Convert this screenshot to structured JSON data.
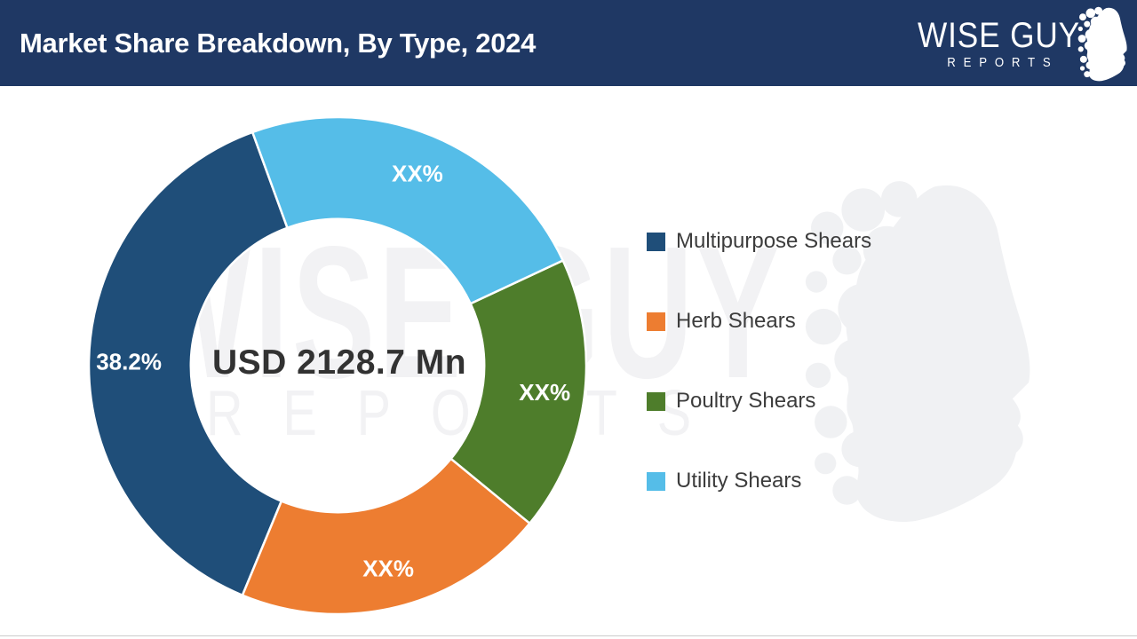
{
  "header": {
    "title": "Market Share Breakdown, By Type, 2024",
    "bg_color": "#1f3864",
    "logo": {
      "line1": "WISE GUY",
      "line2": "REPORTS"
    }
  },
  "watermark": {
    "line1": "WISE GUY",
    "line2": "REPORTS"
  },
  "chart_data": {
    "type": "pie",
    "subtype": "donut",
    "title": "Market Share Breakdown, By Type, 2024",
    "center_label": "USD 2128.7 Mn",
    "categories": [
      "Multipurpose Shears",
      "Herb Shears",
      "Poultry Shears",
      "Utility Shears"
    ],
    "values": [
      38.2,
      20.3,
      17.9,
      23.6
    ],
    "display_labels": [
      "38.2%",
      "XX%",
      "XX%",
      "XX%"
    ],
    "colors": [
      "#1f4e79",
      "#ed7d31",
      "#4e7d2b",
      "#55bde8"
    ],
    "start_angle_deg": 110,
    "direction": "counterclockwise",
    "inner_radius_ratio": 0.59,
    "legend_position": "right",
    "label_color": "#ffffff",
    "segment_gap_color": "#ffffff"
  }
}
